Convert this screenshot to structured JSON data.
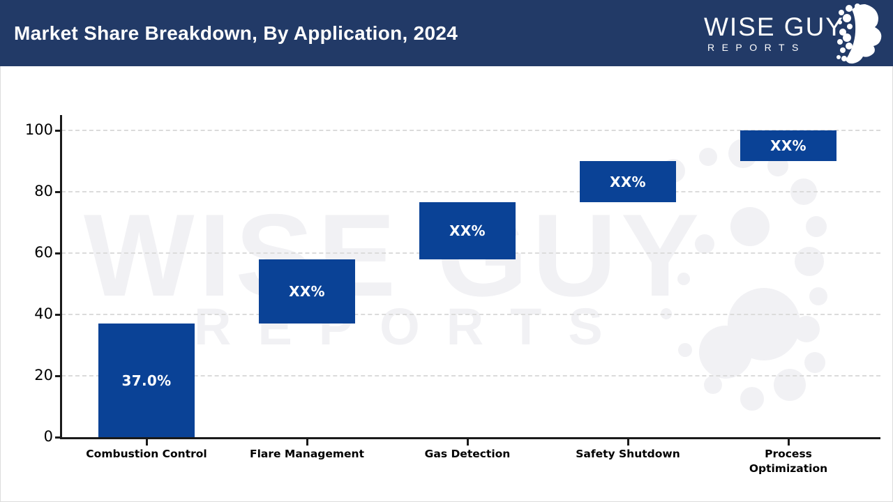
{
  "header": {
    "title": "Market Share Breakdown, By Application, 2024",
    "bg_color": "#223a67",
    "logo": {
      "line1": "WISE GUY",
      "line2": "REPORTS"
    }
  },
  "watermark": {
    "line1": "WISE GUY",
    "line2": "REPORTS"
  },
  "chart_data": {
    "type": "bar",
    "subtype": "floating-cumulative-segments",
    "title": "Market Share Breakdown, By Application, 2024",
    "categories": [
      "Combustion Control",
      "Flare Management",
      "Gas Detection",
      "Safety Shutdown",
      "Process Optimization"
    ],
    "bars": [
      {
        "category": "Combustion Control",
        "xlabel": "Combustion Control",
        "start": 0,
        "end": 37,
        "label": "37.0%"
      },
      {
        "category": "Flare Management",
        "xlabel": "Flare Management",
        "start": 37,
        "end": 58,
        "label": "XX%"
      },
      {
        "category": "Gas Detection",
        "xlabel": "Gas Detection",
        "start": 58,
        "end": 76.5,
        "label": "XX%"
      },
      {
        "category": "Safety Shutdown",
        "xlabel": "Safety Shutdown",
        "start": 76.5,
        "end": 90,
        "label": "XX%"
      },
      {
        "category": "Process Optimization",
        "xlabel": "Process\nOptimization",
        "start": 90,
        "end": 100,
        "label": "XX%"
      }
    ],
    "y_ticks": [
      0,
      20,
      40,
      60,
      80,
      100
    ],
    "ylim": [
      0,
      105
    ],
    "xlabel": "",
    "ylabel": "",
    "grid": "horizontal dashed",
    "legend": "none",
    "bar_color": "#0a4296",
    "bar_label_color": "#ffffff",
    "axis_color": "#1a1a1a"
  }
}
